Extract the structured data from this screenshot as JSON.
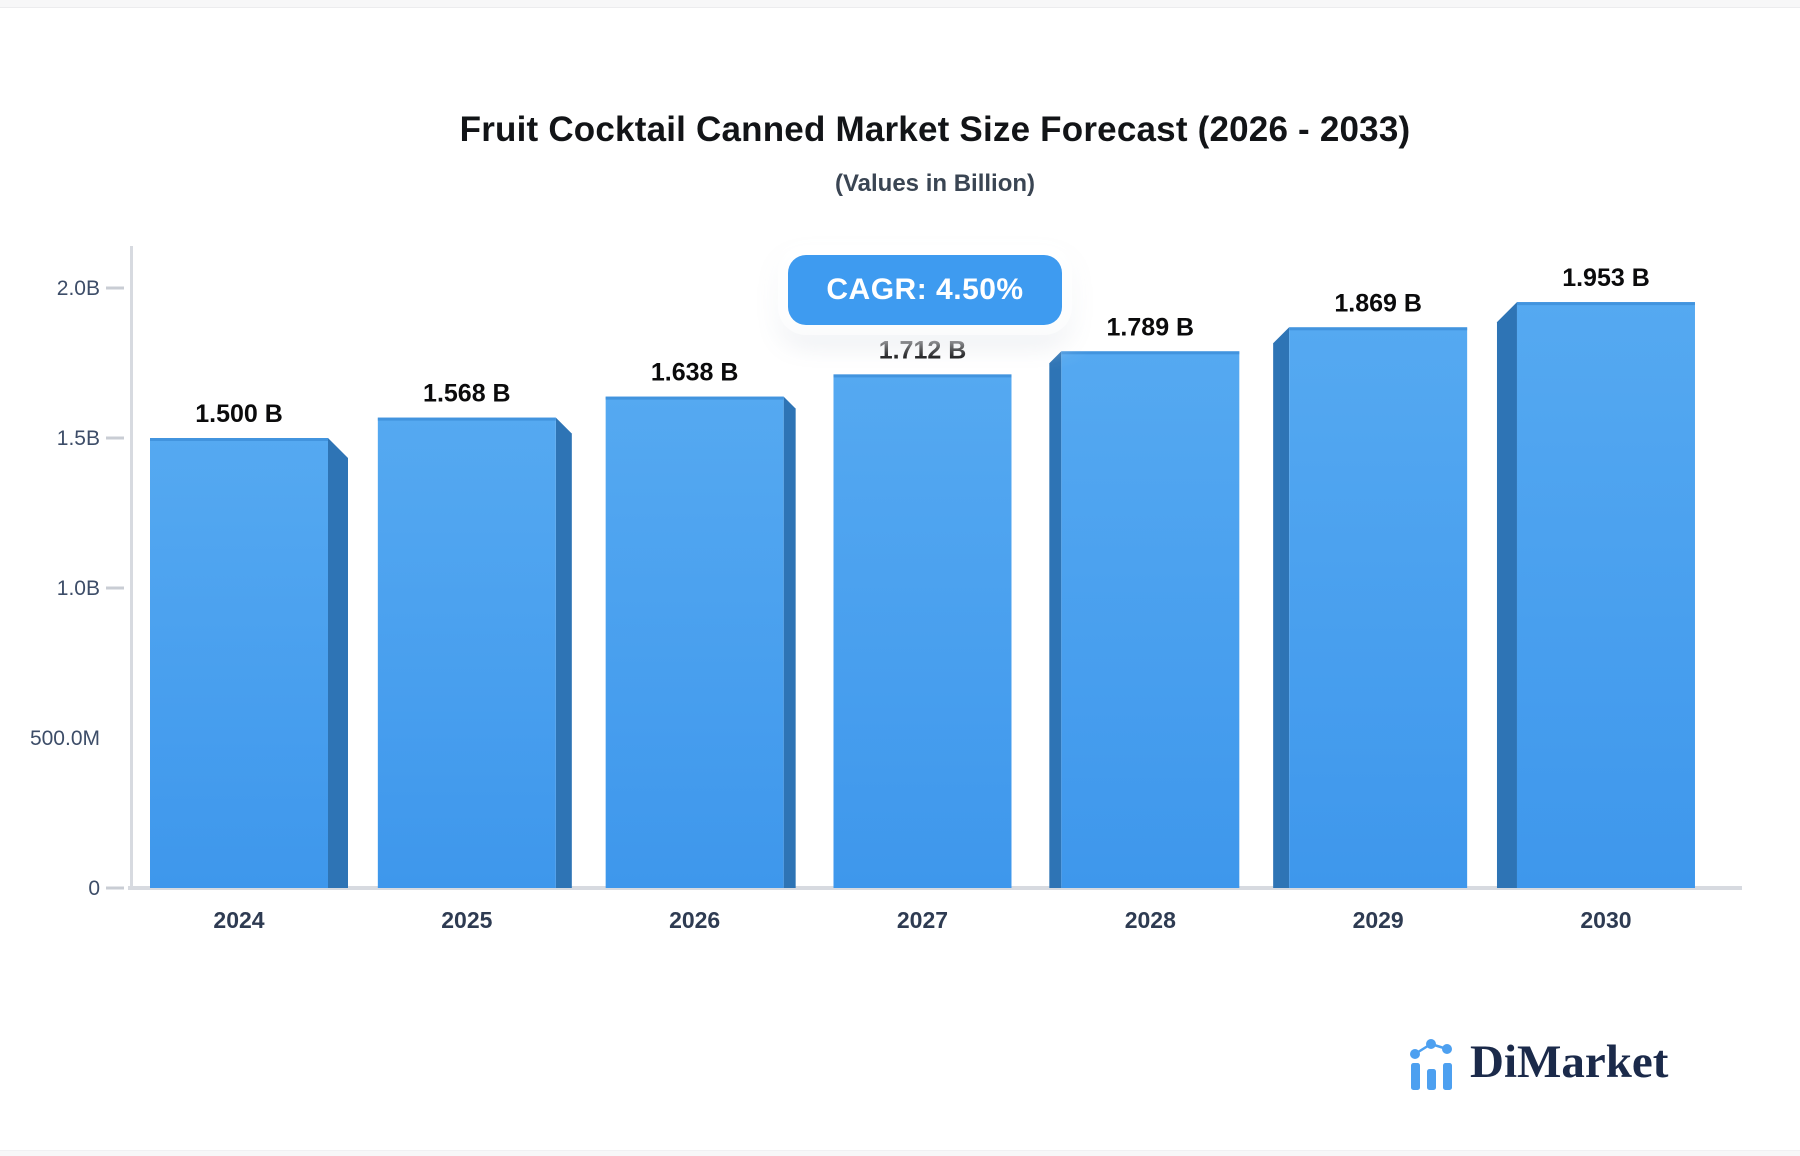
{
  "header": {
    "title": "Fruit Cocktail Canned Market Size Forecast (2026 - 2033)",
    "subtitle": "(Values in Billion)"
  },
  "badge": {
    "label": "CAGR: 4.50%"
  },
  "logo": {
    "brand": "DiMarket",
    "icon": "mini-bar-chart-icon"
  },
  "colors": {
    "bar_face_top": "#55a9f1",
    "bar_face_bottom": "#3e97ec",
    "bar_top_edge": "#4090db",
    "bar_side": "#2e74b5",
    "badge_bg": "#3e9bf0",
    "axis_line": "#d7dae0",
    "tick_dash": "#c9cdd4",
    "y_label": "#3d4d68",
    "x_label": "#2e3b52",
    "value_label": "#0b0b0c",
    "logo_icon": "#4da0f0",
    "logo_text": "#1b2a4a"
  },
  "chart_data": {
    "type": "bar",
    "style": "3d-bars",
    "title": "Fruit Cocktail Canned Market Size Forecast (2026 - 2033)",
    "subtitle": "(Values in Billion)",
    "cagr_label": "CAGR: 4.50%",
    "unit": "Billion",
    "categories": [
      "2024",
      "2025",
      "2026",
      "2027",
      "2028",
      "2029",
      "2030"
    ],
    "values": [
      1.5,
      1.568,
      1.638,
      1.712,
      1.789,
      1.869,
      1.953
    ],
    "value_labels": [
      "1.500 B",
      "1.568 B",
      "1.638 B",
      "1.712 B",
      "1.789 B",
      "1.869 B",
      "1.953 B"
    ],
    "ylim": [
      0,
      2.0
    ],
    "grid": false,
    "legend": false,
    "y_axis_ticks": [
      {
        "label": "2.0B",
        "value": 2.0,
        "dash": true
      },
      {
        "label": "1.5B",
        "value": 1.5,
        "dash": true
      },
      {
        "label": "1.0B",
        "value": 1.0,
        "dash": true
      },
      {
        "label": "500.0M",
        "value": 0.5,
        "dash": false
      },
      {
        "label": "0",
        "value": 0.0,
        "dash": true
      }
    ]
  }
}
